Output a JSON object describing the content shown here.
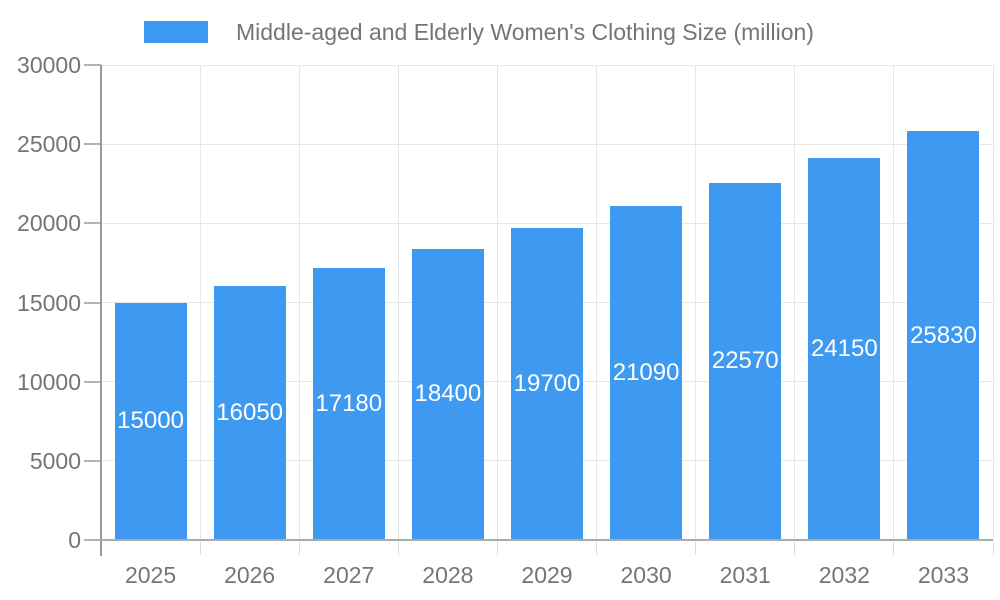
{
  "chart_data": {
    "type": "bar",
    "title": "Middle-aged and Elderly Women's Clothing Size (million)",
    "categories": [
      "2025",
      "2026",
      "2027",
      "2028",
      "2029",
      "2030",
      "2031",
      "2032",
      "2033"
    ],
    "series": [
      {
        "name": "Middle-aged and Elderly Women's Clothing Size (million)",
        "values": [
          15000,
          16050,
          17180,
          18400,
          19700,
          21090,
          22570,
          24150,
          25830
        ]
      }
    ],
    "value_labels": [
      "15000",
      "16050",
      "17180",
      "18400",
      "19700",
      "21090",
      "22570",
      "24150",
      "25830"
    ],
    "xlabel": "",
    "ylabel": "",
    "ylim": [
      0,
      30000
    ],
    "yticks": [
      0,
      5000,
      10000,
      15000,
      20000,
      25000,
      30000
    ],
    "ytick_labels": [
      "0",
      "5000",
      "10000",
      "15000",
      "20000",
      "25000",
      "30000"
    ],
    "grid": "on",
    "legend_position": "top",
    "colors": {
      "bar": "#3D9AF0",
      "bar_value_text": "#ffffff",
      "axis_text": "#757575",
      "gridline": "#e6e6e6",
      "axis_line_y": "#999999",
      "axis_line_x": "#ababab",
      "boundary_tick": "#d9d9d9",
      "y_tick": "#b3b3b3",
      "background": "#ffffff"
    }
  },
  "legend": {
    "label": "Middle-aged and Elderly Women's Clothing Size (million)",
    "swatch_color": "#3D9AF0"
  }
}
